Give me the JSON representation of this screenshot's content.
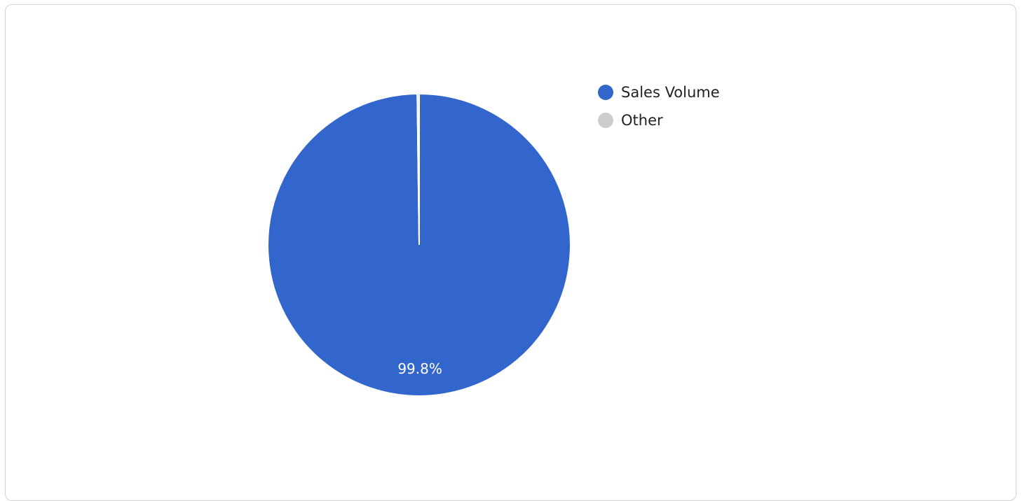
{
  "chart_data": {
    "type": "pie",
    "slices": [
      {
        "name": "Sales Volume",
        "value": 99.8,
        "label": "99.8%",
        "color": "#3366cc"
      },
      {
        "name": "Other",
        "value": 0.2,
        "label": "",
        "color": "#cccccc"
      }
    ],
    "legend": {
      "position": "right",
      "items": [
        "Sales Volume",
        "Other"
      ]
    },
    "title": ""
  }
}
